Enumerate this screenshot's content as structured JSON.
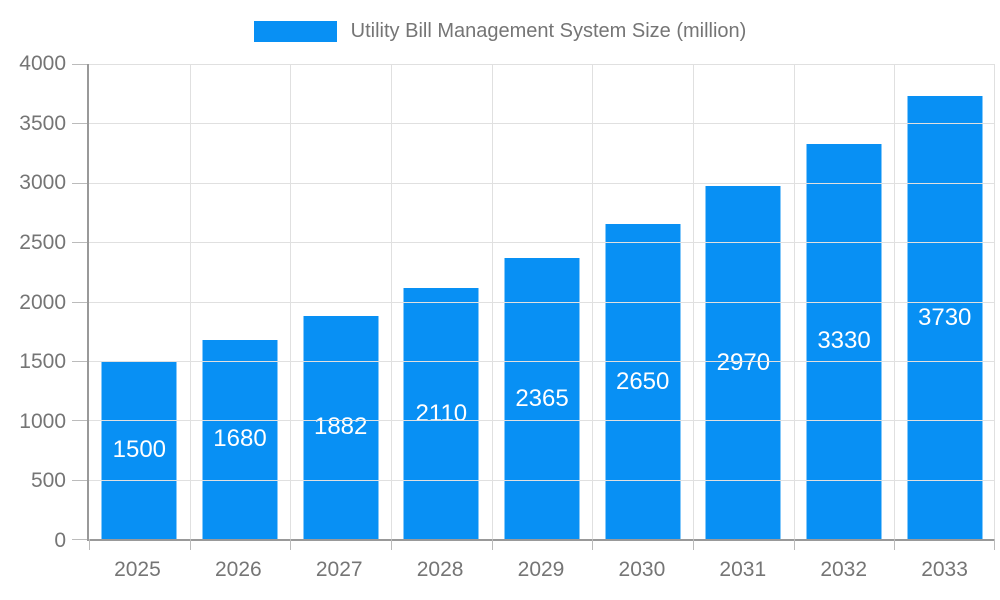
{
  "legend": {
    "label": "Utility Bill Management System Size (million)"
  },
  "chart_data": {
    "type": "bar",
    "title": "Utility Bill Management System Size (million)",
    "categories": [
      "2025",
      "2026",
      "2027",
      "2028",
      "2029",
      "2030",
      "2031",
      "2032",
      "2033"
    ],
    "values": [
      1500,
      1680,
      1882,
      2110,
      2365,
      2650,
      2970,
      3330,
      3730
    ],
    "xlabel": "",
    "ylabel": "",
    "ylim": [
      0,
      4000
    ],
    "ytick_step": 500,
    "grid": true,
    "legend_position": "top",
    "bar_labels_inside": true,
    "colors": {
      "bar": "#0890F4",
      "grid": "#e0e0e0",
      "axis": "#999999",
      "tick": "#bbbbbb",
      "text": "#757575",
      "bar_label": "#ffffff"
    }
  }
}
